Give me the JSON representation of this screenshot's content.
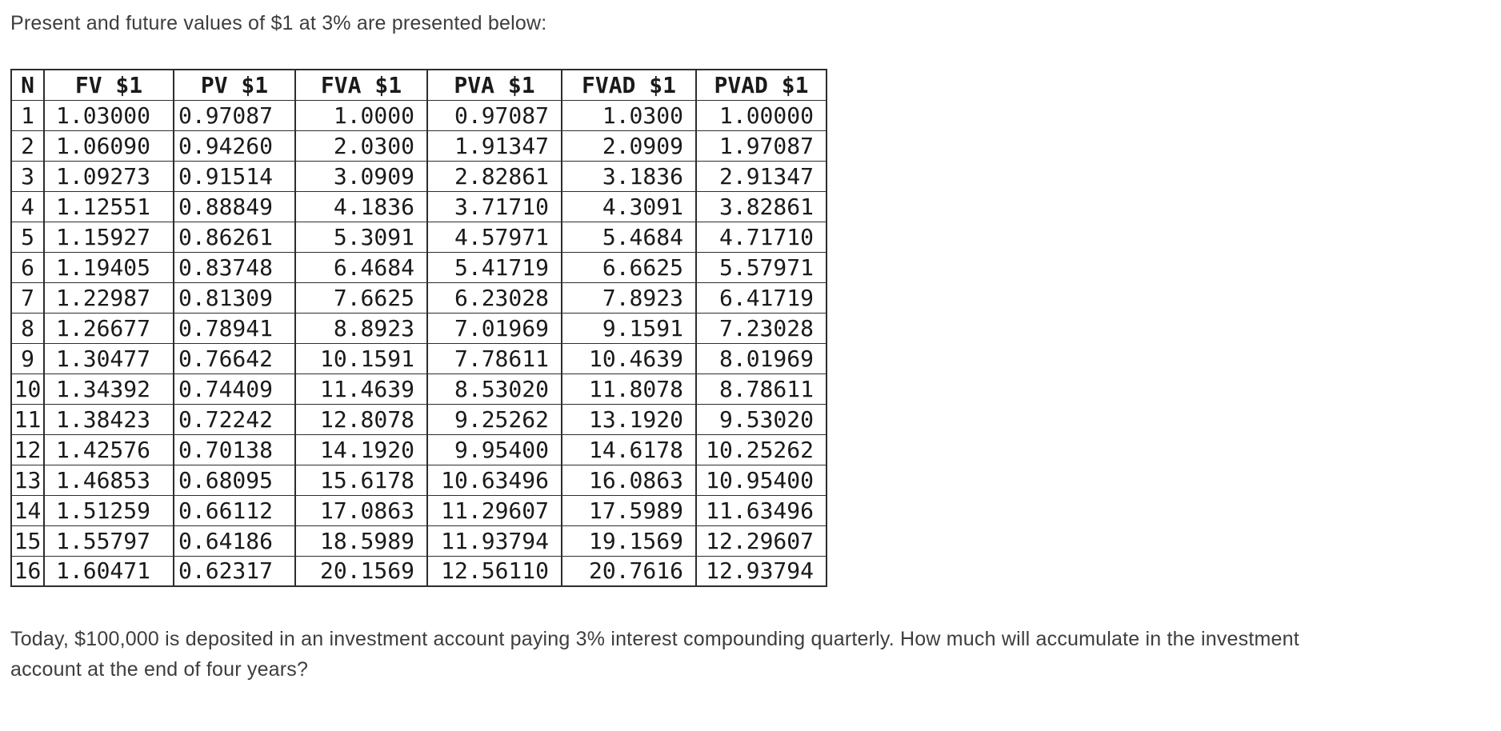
{
  "intro": "Present and future values of $1 at 3% are presented below:",
  "table": {
    "headers": [
      "N",
      "FV $1",
      "PV $1",
      "FVA $1",
      "PVA $1",
      "FVAD $1",
      "PVAD $1"
    ],
    "rows": [
      [
        "1",
        "1.03000",
        "0.97087",
        "1.0000",
        "0.97087",
        "1.0300",
        "1.00000"
      ],
      [
        "2",
        "1.06090",
        "0.94260",
        "2.0300",
        "1.91347",
        "2.0909",
        "1.97087"
      ],
      [
        "3",
        "1.09273",
        "0.91514",
        "3.0909",
        "2.82861",
        "3.1836",
        "2.91347"
      ],
      [
        "4",
        "1.12551",
        "0.88849",
        "4.1836",
        "3.71710",
        "4.3091",
        "3.82861"
      ],
      [
        "5",
        "1.15927",
        "0.86261",
        "5.3091",
        "4.57971",
        "5.4684",
        "4.71710"
      ],
      [
        "6",
        "1.19405",
        "0.83748",
        "6.4684",
        "5.41719",
        "6.6625",
        "5.57971"
      ],
      [
        "7",
        "1.22987",
        "0.81309",
        "7.6625",
        "6.23028",
        "7.8923",
        "6.41719"
      ],
      [
        "8",
        "1.26677",
        "0.78941",
        "8.8923",
        "7.01969",
        "9.1591",
        "7.23028"
      ],
      [
        "9",
        "1.30477",
        "0.76642",
        "10.1591",
        "7.78611",
        "10.4639",
        "8.01969"
      ],
      [
        "10",
        "1.34392",
        "0.74409",
        "11.4639",
        "8.53020",
        "11.8078",
        "8.78611"
      ],
      [
        "11",
        "1.38423",
        "0.72242",
        "12.8078",
        "9.25262",
        "13.1920",
        "9.53020"
      ],
      [
        "12",
        "1.42576",
        "0.70138",
        "14.1920",
        "9.95400",
        "14.6178",
        "10.25262"
      ],
      [
        "13",
        "1.46853",
        "0.68095",
        "15.6178",
        "10.63496",
        "16.0863",
        "10.95400"
      ],
      [
        "14",
        "1.51259",
        "0.66112",
        "17.0863",
        "11.29607",
        "17.5989",
        "11.63496"
      ],
      [
        "15",
        "1.55797",
        "0.64186",
        "18.5989",
        "11.93794",
        "19.1569",
        "12.29607"
      ],
      [
        "16",
        "1.60471",
        "0.62317",
        "20.1569",
        "12.56110",
        "20.7616",
        "12.93794"
      ]
    ]
  },
  "question": {
    "line1": "Today, $100,000 is deposited in an investment account paying 3% interest compounding quarterly. How much will accumulate in the investment",
    "line2": "account at the end of four years?"
  },
  "colors": {
    "text": "#3d3d3d",
    "table_text": "#1a1a1a",
    "table_border": "#2d2d2d",
    "background": "#ffffff"
  }
}
